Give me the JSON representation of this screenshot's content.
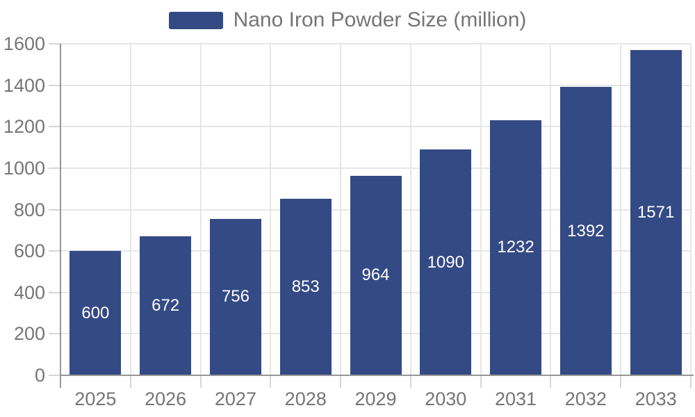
{
  "chart_data": {
    "type": "bar",
    "legend": "Nano Iron Powder Size (million)",
    "categories": [
      "2025",
      "2026",
      "2027",
      "2028",
      "2029",
      "2030",
      "2031",
      "2032",
      "2033"
    ],
    "values": [
      600,
      672,
      756,
      853,
      964,
      1090,
      1232,
      1392,
      1571
    ],
    "title": "",
    "xlabel": "",
    "ylabel": "",
    "ylim": [
      0,
      1600
    ],
    "ytick_step": 200,
    "ytick_labels": [
      "0",
      "200",
      "400",
      "600",
      "800",
      "1000",
      "1200",
      "1400",
      "1600"
    ],
    "grid": true,
    "legend_position": "top-center",
    "value_labels_inside_bars": true,
    "colors": {
      "bar": "#344a85",
      "value_label": "#ffffff",
      "axis_label": "#757575",
      "axis_line": "#969696",
      "gridline": "#e6e6e6",
      "tick": "#d6d6d6",
      "background": "#ffffff"
    }
  }
}
